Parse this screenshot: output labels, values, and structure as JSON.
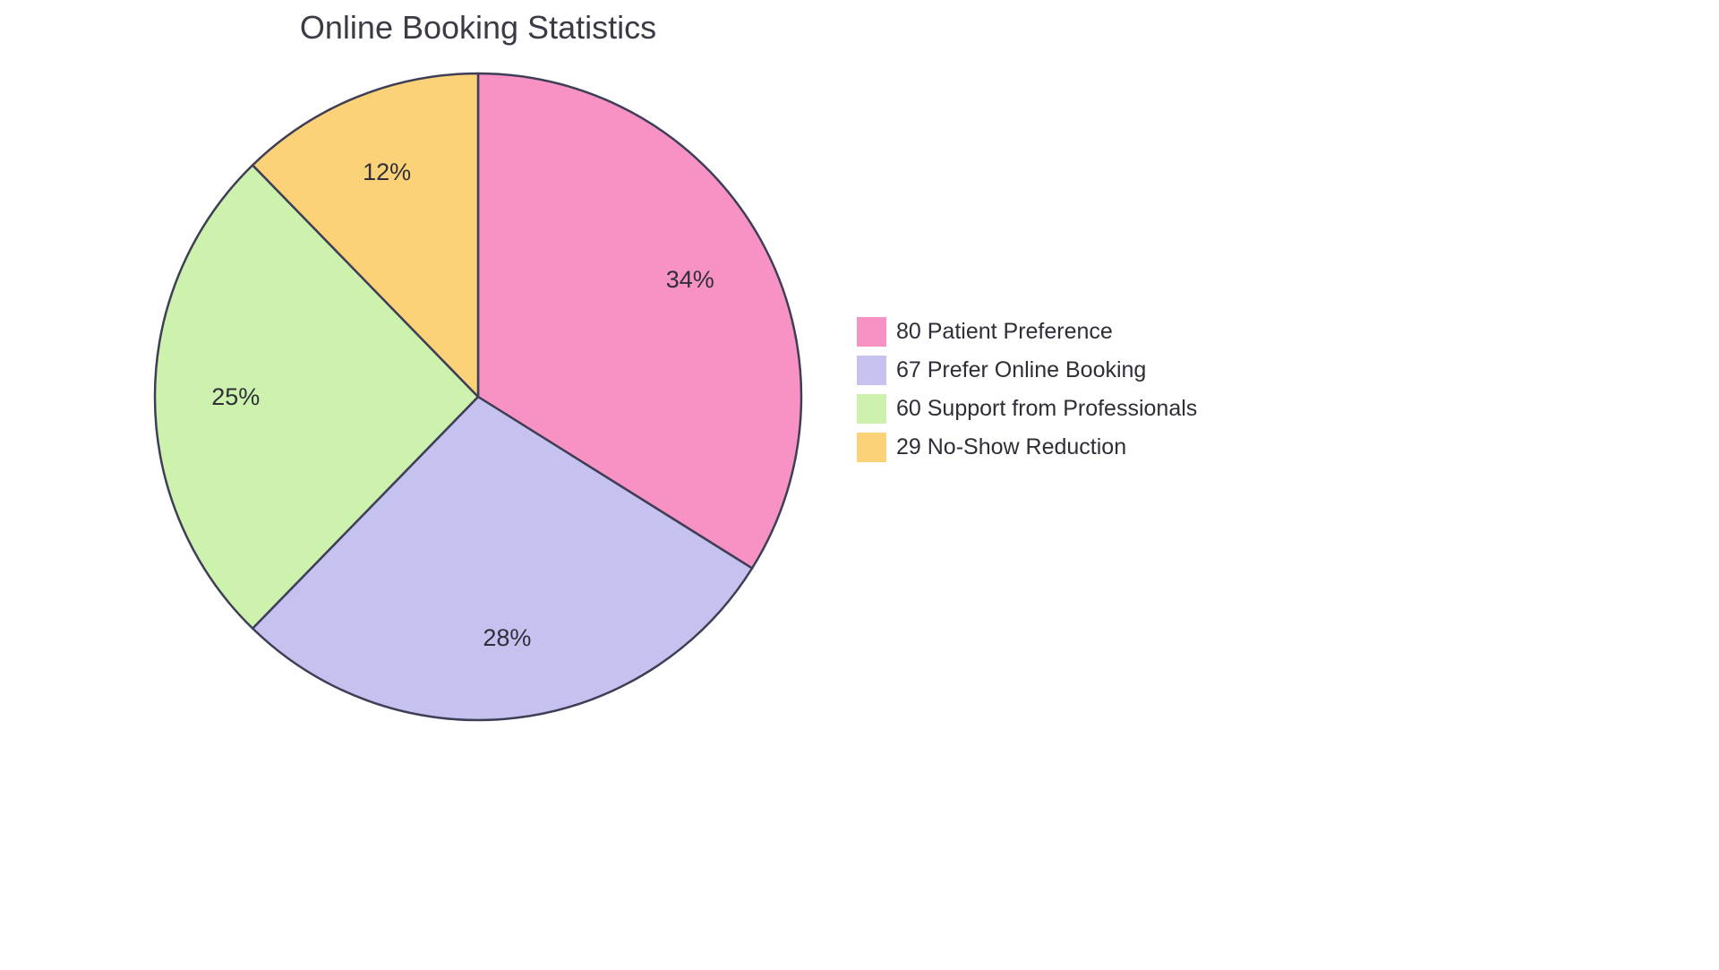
{
  "chart_data": {
    "type": "pie",
    "title": "Online Booking Statistics",
    "legend_position": "right",
    "direction": "clockwise",
    "start_angle_deg": 0,
    "stroke_color": "#3e3e56",
    "label_color": "#2f2f3a",
    "slices": [
      {
        "label": "80 Patient Preference",
        "value": 80,
        "percent": "34%",
        "color": "#f892c4"
      },
      {
        "label": "67 Prefer Online Booking",
        "value": 67,
        "percent": "28%",
        "color": "#c6c2f0"
      },
      {
        "label": "60 Support from Professionals",
        "value": 60,
        "percent": "25%",
        "color": "#cdf2ae"
      },
      {
        "label": "29 No-Show Reduction",
        "value": 29,
        "percent": "12%",
        "color": "#fbd277"
      }
    ]
  }
}
